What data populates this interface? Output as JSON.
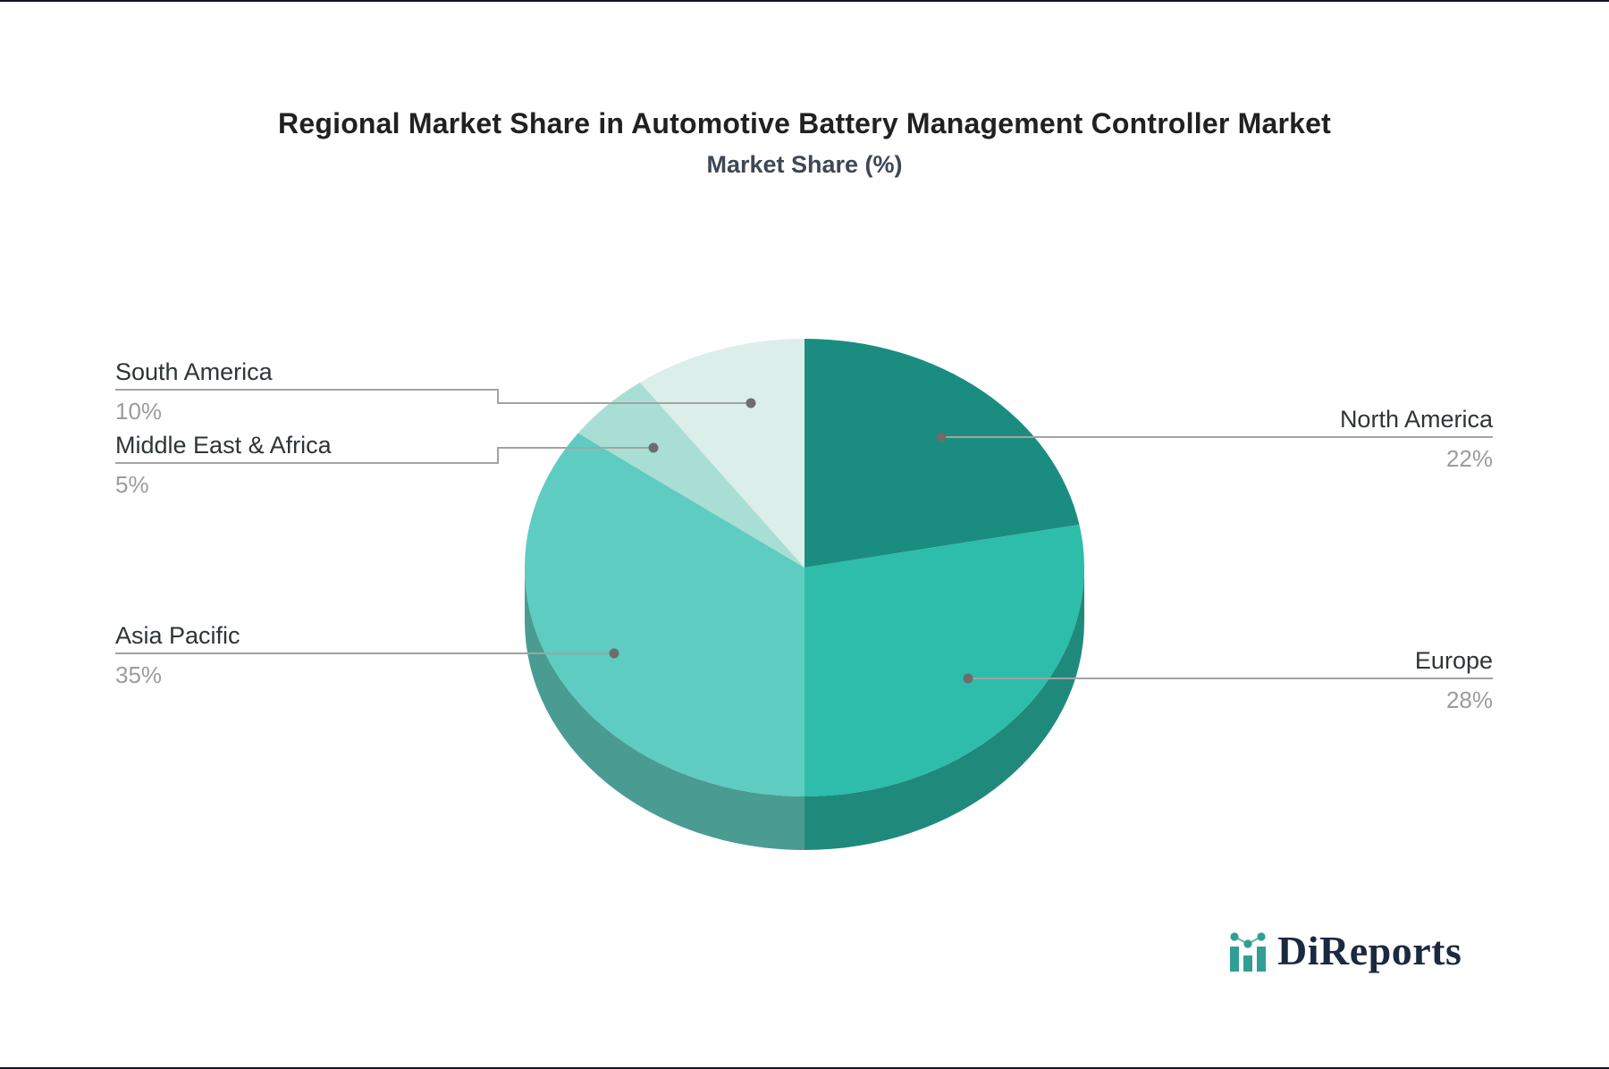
{
  "brand": {
    "name": "DiReports",
    "icon": "bar-chart-logo-icon"
  },
  "chart_data": {
    "type": "pie",
    "title": "Regional Market Share in Automotive Battery Management Controller Market",
    "subtitle": "Market Share (%)",
    "unit": "%",
    "direction": "clockwise",
    "start_angle_deg": 0,
    "effect_3d": true,
    "legend_position": "outside-callouts",
    "slices": [
      {
        "label": "North America",
        "value": 22,
        "pct_label": "22%",
        "color": "#1b8d80",
        "label_side": "right"
      },
      {
        "label": "Europe",
        "value": 28,
        "pct_label": "28%",
        "color": "#2ebcab",
        "rim_color": "#1f8a7b",
        "label_side": "right"
      },
      {
        "label": "Asia Pacific",
        "value": 35,
        "pct_label": "35%",
        "color": "#5fccc1",
        "rim_color": "#4a9c92",
        "label_side": "left"
      },
      {
        "label": "Middle East & Africa",
        "value": 5,
        "pct_label": "5%",
        "color": "#a9ded4",
        "label_side": "left"
      },
      {
        "label": "South America",
        "value": 10,
        "pct_label": "10%",
        "color": "#dceeea",
        "label_side": "left"
      }
    ],
    "leader_line_color": "#a3a3a3",
    "dot_color": "#6d6d6d",
    "label_color": "#2f3437",
    "pct_color": "#9c9c9c",
    "title_color": "#212121",
    "subtitle_color": "#3d4756",
    "brand_accent_color": "#2f9f94"
  }
}
